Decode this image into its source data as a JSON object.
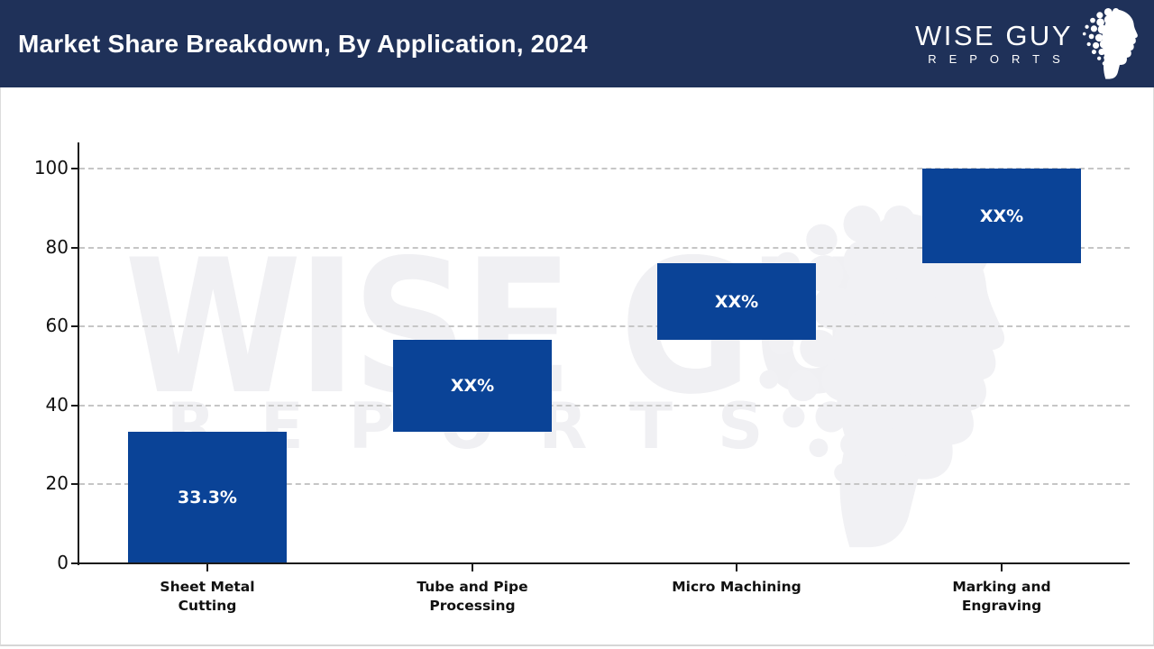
{
  "header": {
    "title": "Market Share Breakdown, By Application, 2024",
    "bg_color": "#1f3159",
    "logo": {
      "line1": "WISE GUY",
      "line2": "REPORTS"
    }
  },
  "watermark": {
    "line1": "WISE GUY",
    "line2": "REPORTS"
  },
  "chart_data": {
    "type": "bar",
    "subtype": "waterfall-stacked-percentage",
    "title": "Market Share Breakdown, By Application, 2024",
    "categories": [
      "Sheet Metal Cutting",
      "Tube and Pipe Processing",
      "Micro Machining",
      "Marking and Engraving"
    ],
    "category_lines": [
      [
        "Sheet Metal",
        "Cutting"
      ],
      [
        "Tube and Pipe",
        "Processing"
      ],
      [
        "Micro Machining"
      ],
      [
        "Marking and",
        "Engraving"
      ]
    ],
    "bars": [
      {
        "category": "Sheet Metal Cutting",
        "label": "33.3%",
        "start": 0,
        "end": 33.3
      },
      {
        "category": "Tube and Pipe Processing",
        "label": "XX%",
        "start": 33.3,
        "end": 56.6
      },
      {
        "category": "Micro Machining",
        "label": "XX%",
        "start": 56.6,
        "end": 76.0
      },
      {
        "category": "Marking and Engraving",
        "label": "XX%",
        "start": 76.0,
        "end": 100
      }
    ],
    "ylim": [
      0,
      100
    ],
    "yticks": [
      0,
      20,
      40,
      60,
      80,
      100
    ],
    "grid": "horizontal-dashed",
    "legend": "none",
    "bar_color": "#0a4397",
    "bar_label_color": "#ffffff",
    "axis_color": "#1a1a1a",
    "grid_color": "#c6c6c6"
  }
}
